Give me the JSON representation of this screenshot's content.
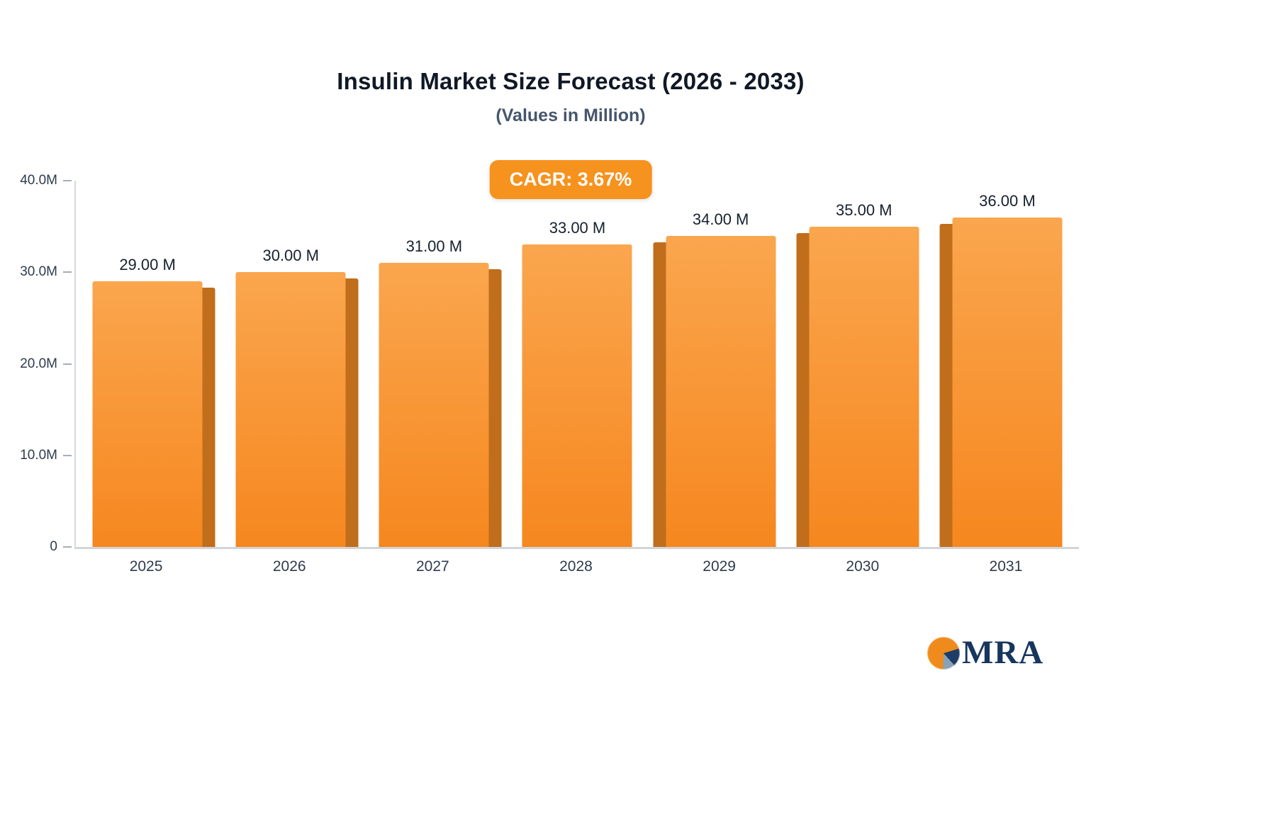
{
  "header": {
    "title": "Insulin Market Size Forecast (2026 - 2033)",
    "subtitle": "(Values in Million)"
  },
  "badge": {
    "label": "CAGR: 3.67%"
  },
  "chart_data": {
    "type": "bar",
    "title": "Insulin Market Size Forecast (2026 - 2033)",
    "subtitle": "(Values in Million)",
    "unit": "Million",
    "cagr": "3.67%",
    "categories": [
      "2025",
      "2026",
      "2027",
      "2028",
      "2029",
      "2030",
      "2031"
    ],
    "values": [
      29,
      30,
      31,
      33,
      34,
      35,
      36
    ],
    "value_labels": [
      "29.00 M",
      "30.00 M",
      "31.00 M",
      "33.00 M",
      "34.00 M",
      "35.00 M",
      "36.00 M"
    ],
    "ylim": [
      0,
      40
    ],
    "yticks": [
      {
        "value": 40,
        "label": "40.0M"
      },
      {
        "value": 30,
        "label": "30.0M"
      },
      {
        "value": 20,
        "label": "20.0M"
      },
      {
        "value": 10,
        "label": "10.0M"
      },
      {
        "value": 0,
        "label": "0"
      }
    ],
    "grid": false,
    "legend": false,
    "colors": {
      "bar_top": "#FAA64E",
      "bar_bottom": "#F6871F",
      "bar_side": "#C06E1B",
      "badge_bg": "#F6921E"
    }
  },
  "logo": {
    "text": "MRA"
  }
}
